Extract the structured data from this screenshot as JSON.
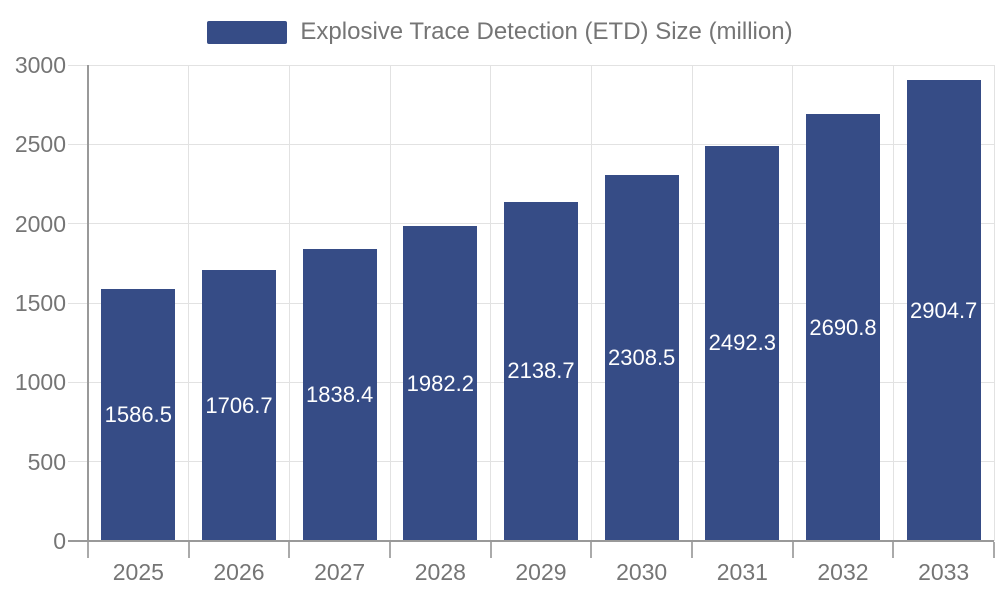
{
  "colors": {
    "background": "#ffffff",
    "bar": "#364C86",
    "grid": "#e2e2e2",
    "axis": "#999999",
    "tick": "#aaaaaa",
    "label_text": "#757575",
    "value_text": "#ffffff"
  },
  "chart_data": {
    "type": "bar",
    "title": "Explosive Trace Detection (ETD) Size (million)",
    "legend": [
      "Explosive Trace Detection (ETD) Size (million)"
    ],
    "legend_position": "top-center",
    "categories": [
      "2025",
      "2026",
      "2027",
      "2028",
      "2029",
      "2030",
      "2031",
      "2032",
      "2033"
    ],
    "values": [
      1586.5,
      1706.7,
      1838.4,
      1982.2,
      2138.7,
      2308.5,
      2492.3,
      2690.8,
      2904.7
    ],
    "value_labels_shown": true,
    "value_label_position": "inside-center",
    "xlabel": "",
    "ylabel": "",
    "ylim": [
      0,
      3000
    ],
    "yticks": [
      0,
      500,
      1000,
      1500,
      2000,
      2500,
      3000
    ],
    "grid": true,
    "grid_vertical": true
  }
}
